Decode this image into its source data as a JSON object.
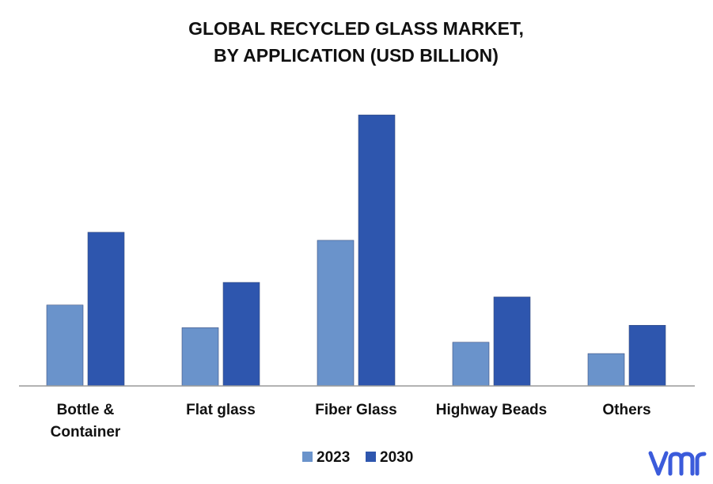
{
  "colors": {
    "series_2023": "#6A93CB",
    "series_2030": "#2E56AE",
    "axis": "#9A9A9A",
    "logo": "#3B5BDB"
  },
  "logo": {
    "icon": "vmr-logo",
    "text": "vmr"
  },
  "chart_data": {
    "type": "bar",
    "title": "GLOBAL RECYCLED GLASS MARKET,",
    "subtitle": "BY APPLICATION (USD BILLION)",
    "categories": [
      [
        "Bottle &",
        "Container"
      ],
      [
        "Flat glass"
      ],
      [
        "Fiber Glass"
      ],
      [
        "Highway Beads"
      ],
      [
        "Others"
      ]
    ],
    "series": [
      {
        "name": "2023",
        "values": [
          1.0,
          0.72,
          1.8,
          0.54,
          0.4
        ]
      },
      {
        "name": "2030",
        "values": [
          1.9,
          1.28,
          3.35,
          1.1,
          0.75
        ]
      }
    ],
    "ylim": [
      0,
      3.5
    ],
    "grid": false,
    "legend_position": "bottom"
  }
}
